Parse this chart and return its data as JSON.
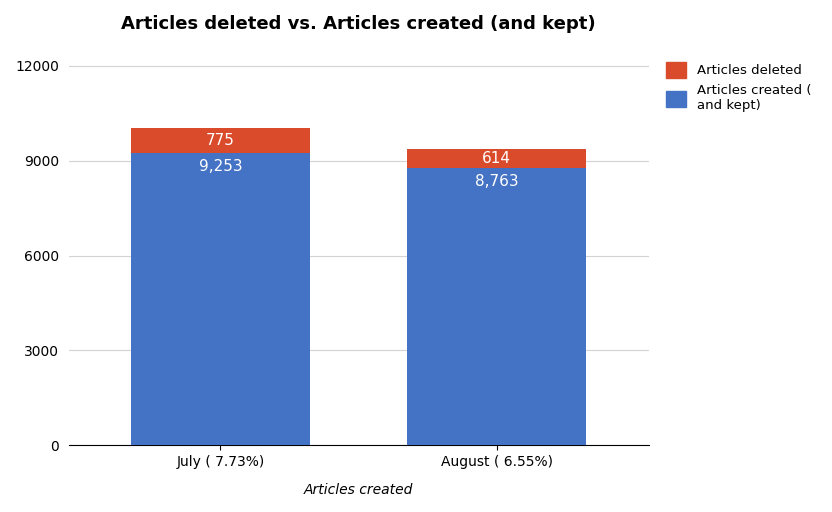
{
  "title": "Articles deleted vs. Articles created (and kept)",
  "categories": [
    "July ( 7.73%)",
    "August ( 6.55%)"
  ],
  "blue_values": [
    9253,
    8763
  ],
  "red_values": [
    775,
    614
  ],
  "blue_color": "#4472C4",
  "red_color": "#D94B2B",
  "blue_label": "Articles created (\nand kept)",
  "red_label": "Articles deleted",
  "xlabel": "Articles created",
  "ylabel": "",
  "ylim": [
    0,
    12500
  ],
  "yticks": [
    0,
    3000,
    6000,
    9000,
    12000
  ],
  "title_fontsize": 13,
  "label_fontsize": 11,
  "tick_fontsize": 10,
  "xlabel_fontsize": 10,
  "background_color": "#ffffff",
  "bar_width": 0.65,
  "text_color_white": "#ffffff"
}
